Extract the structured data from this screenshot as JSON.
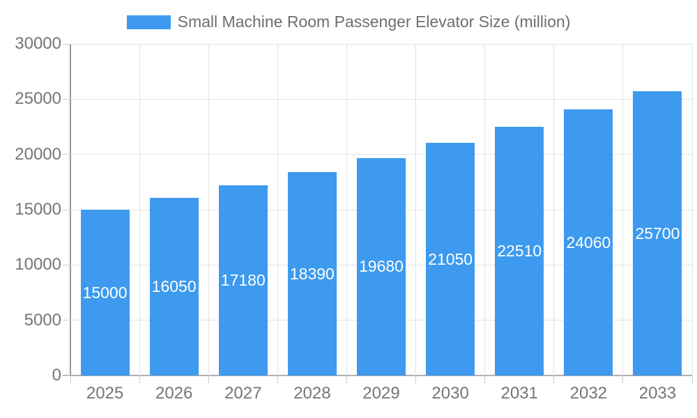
{
  "legend": {
    "label": "Small Machine Room Passenger Elevator Size (million)",
    "swatch_color": "#3d9aee"
  },
  "chart_data": {
    "type": "bar",
    "title": "Small Machine Room Passenger Elevator Size (million)",
    "categories": [
      "2025",
      "2026",
      "2027",
      "2028",
      "2029",
      "2030",
      "2031",
      "2032",
      "2033"
    ],
    "values": [
      15000,
      16050,
      17180,
      18390,
      19680,
      21050,
      22510,
      24060,
      25700
    ],
    "series": [
      {
        "name": "Small Machine Room Passenger Elevator Size (million)",
        "values": [
          15000,
          16050,
          17180,
          18390,
          19680,
          21050,
          22510,
          24060,
          25700
        ]
      }
    ],
    "xlabel": "",
    "ylabel": "",
    "ylim": [
      0,
      30000
    ],
    "yticks": [
      0,
      5000,
      10000,
      15000,
      20000,
      25000,
      30000
    ],
    "grid": true,
    "legend_position": "top-center",
    "bar_color": "#3d9aee",
    "bar_label_color": "#ffffff",
    "axis_text_color": "#757575"
  }
}
